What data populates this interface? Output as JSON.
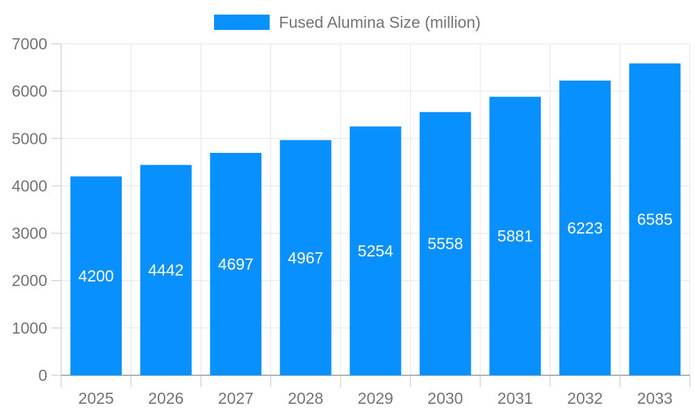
{
  "colors": {
    "bar": "#0990ff",
    "grid": "#e5e5e5",
    "axis_line": "#b0b0b0",
    "tick": "#d6d6d6",
    "label_text": "#737373",
    "bar_label_text": "#ffffff",
    "background": "#ffffff"
  },
  "legend": {
    "label": "Fused Alumina Size (million)"
  },
  "chart_data": {
    "type": "bar",
    "title": "Fused Alumina Size (million)",
    "series_name": "Fused Alumina Size (million)",
    "categories": [
      "2025",
      "2026",
      "2027",
      "2028",
      "2029",
      "2030",
      "2031",
      "2032",
      "2033"
    ],
    "values": [
      4200,
      4442,
      4697,
      4967,
      5254,
      5558,
      5881,
      6223,
      6585
    ],
    "xlabel": "",
    "ylabel": "",
    "ylim": [
      0,
      7000
    ],
    "ytick_step": 1000,
    "ytick_labels": [
      "0",
      "1000",
      "2000",
      "3000",
      "4000",
      "5000",
      "6000",
      "7000"
    ],
    "grid": true,
    "legend_position": "top",
    "bar_value_labels": "inside-middle"
  }
}
